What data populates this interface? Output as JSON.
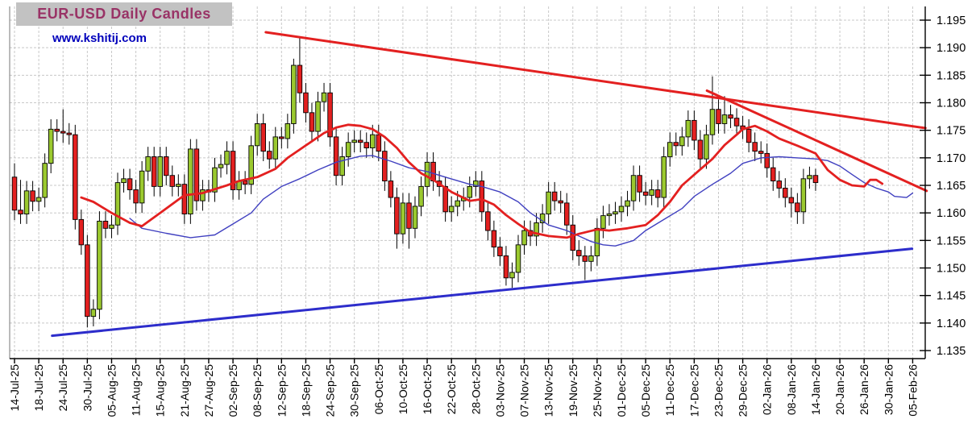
{
  "header": {
    "title": "EUR-USD Daily Candles",
    "website": "www.kshitij.com",
    "title_color": "#993366",
    "title_bg": "#c2c2c2",
    "website_color": "#0000bb"
  },
  "chart_data": {
    "type": "candlestick",
    "title": "EUR-USD Daily Candles",
    "xlabel": "",
    "ylabel": "",
    "grid": true,
    "ylim": [
      1.1335,
      1.1975
    ],
    "y_tick_labels": [
      "1.195",
      "1.190",
      "1.185",
      "1.180",
      "1.175",
      "1.170",
      "1.165",
      "1.160",
      "1.155",
      "1.150",
      "1.145",
      "1.140",
      "1.135"
    ],
    "x_labels": [
      "14-Jul-25",
      "18-Jul-25",
      "24-Jul-25",
      "30-Jul-25",
      "05-Aug-25",
      "11-Aug-25",
      "15-Aug-25",
      "21-Aug-25",
      "27-Aug-25",
      "02-Sep-25",
      "08-Sep-25",
      "12-Sep-25",
      "18-Sep-25",
      "24-Sep-25",
      "30-Sep-25",
      "06-Oct-25",
      "10-Oct-25",
      "16-Oct-25",
      "22-Oct-25",
      "28-Oct-25",
      "03-Nov-25",
      "07-Nov-25",
      "13-Nov-25",
      "19-Nov-25",
      "25-Nov-25",
      "01-Dec-25",
      "05-Dec-25",
      "11-Dec-25",
      "17-Dec-25",
      "23-Dec-25",
      "29-Dec-25",
      "02-Jan-26",
      "08-Jan-26",
      "14-Jan-26",
      "20-Jan-26",
      "26-Jan-26",
      "30-Jan-26",
      "05-Feb-26"
    ],
    "candles_per_label": 4,
    "colors": {
      "up_candle": "#9bc92f",
      "down_candle": "#e32020",
      "candle_border": "#000000",
      "fast_ma": "#e32020",
      "slow_ma": "#4040c0",
      "resistance_line": "#e32020",
      "support_line": "#2d2dcb",
      "grid": "#c8c8c8",
      "axis": "#000000"
    },
    "candles": [
      [
        1.1665,
        1.169,
        1.1587,
        1.1605
      ],
      [
        1.1605,
        1.166,
        1.158,
        1.1598
      ],
      [
        1.1598,
        1.1658,
        1.158,
        1.164
      ],
      [
        1.164,
        1.1658,
        1.1603,
        1.1621
      ],
      [
        1.1621,
        1.1646,
        1.1603,
        1.1628
      ],
      [
        1.1628,
        1.1708,
        1.161,
        1.169
      ],
      [
        1.169,
        1.177,
        1.1672,
        1.1752
      ],
      [
        1.1752,
        1.177,
        1.173,
        1.1748
      ],
      [
        1.1748,
        1.1788,
        1.1727,
        1.1745
      ],
      [
        1.1745,
        1.1763,
        1.1724,
        1.1742
      ],
      [
        1.1742,
        1.176,
        1.157,
        1.1588
      ],
      [
        1.1588,
        1.1606,
        1.1524,
        1.1542
      ],
      [
        1.1542,
        1.156,
        1.1392,
        1.1412
      ],
      [
        1.1412,
        1.1443,
        1.1394,
        1.1425
      ],
      [
        1.1425,
        1.1603,
        1.1407,
        1.1585
      ],
      [
        1.1585,
        1.1603,
        1.1554,
        1.1572
      ],
      [
        1.1572,
        1.1596,
        1.1554,
        1.1578
      ],
      [
        1.1578,
        1.1673,
        1.156,
        1.1655
      ],
      [
        1.1655,
        1.168,
        1.1637,
        1.1662
      ],
      [
        1.1662,
        1.168,
        1.1624,
        1.1642
      ],
      [
        1.1642,
        1.166,
        1.16,
        1.1618
      ],
      [
        1.1618,
        1.1694,
        1.16,
        1.1676
      ],
      [
        1.1676,
        1.172,
        1.1658,
        1.1702
      ],
      [
        1.1702,
        1.172,
        1.163,
        1.1648
      ],
      [
        1.1648,
        1.172,
        1.163,
        1.1702
      ],
      [
        1.1702,
        1.172,
        1.165,
        1.1668
      ],
      [
        1.1668,
        1.1686,
        1.163,
        1.1648
      ],
      [
        1.1648,
        1.167,
        1.163,
        1.1652
      ],
      [
        1.1652,
        1.167,
        1.158,
        1.1598
      ],
      [
        1.1598,
        1.1734,
        1.158,
        1.1716
      ],
      [
        1.1716,
        1.1734,
        1.1604,
        1.1622
      ],
      [
        1.1622,
        1.166,
        1.1604,
        1.1642
      ],
      [
        1.1642,
        1.166,
        1.162,
        1.1638
      ],
      [
        1.1638,
        1.17,
        1.162,
        1.1682
      ],
      [
        1.1682,
        1.1706,
        1.1664,
        1.1688
      ],
      [
        1.1688,
        1.173,
        1.167,
        1.1712
      ],
      [
        1.1712,
        1.173,
        1.1624,
        1.1642
      ],
      [
        1.1642,
        1.1676,
        1.1624,
        1.1658
      ],
      [
        1.1658,
        1.1676,
        1.1634,
        1.1652
      ],
      [
        1.1652,
        1.174,
        1.1634,
        1.1722
      ],
      [
        1.1722,
        1.178,
        1.1704,
        1.1762
      ],
      [
        1.1762,
        1.178,
        1.1694,
        1.1712
      ],
      [
        1.1712,
        1.173,
        1.168,
        1.1698
      ],
      [
        1.1698,
        1.1756,
        1.168,
        1.1738
      ],
      [
        1.1738,
        1.1756,
        1.1717,
        1.1735
      ],
      [
        1.1735,
        1.178,
        1.1717,
        1.1762
      ],
      [
        1.1762,
        1.188,
        1.1744,
        1.1868
      ],
      [
        1.1868,
        1.1919,
        1.18,
        1.1818
      ],
      [
        1.1818,
        1.1836,
        1.1764,
        1.1782
      ],
      [
        1.1782,
        1.18,
        1.173,
        1.1748
      ],
      [
        1.1748,
        1.182,
        1.173,
        1.1802
      ],
      [
        1.1802,
        1.1836,
        1.1784,
        1.1818
      ],
      [
        1.1818,
        1.1836,
        1.172,
        1.1738
      ],
      [
        1.1738,
        1.1756,
        1.165,
        1.1668
      ],
      [
        1.1668,
        1.172,
        1.165,
        1.1702
      ],
      [
        1.1702,
        1.1746,
        1.1684,
        1.1728
      ],
      [
        1.1728,
        1.175,
        1.171,
        1.1732
      ],
      [
        1.1732,
        1.175,
        1.171,
        1.1728
      ],
      [
        1.1728,
        1.1746,
        1.17,
        1.1718
      ],
      [
        1.1718,
        1.176,
        1.17,
        1.1742
      ],
      [
        1.1742,
        1.176,
        1.1694,
        1.1712
      ],
      [
        1.1712,
        1.173,
        1.164,
        1.1658
      ],
      [
        1.1658,
        1.1676,
        1.161,
        1.1628
      ],
      [
        1.1628,
        1.1646,
        1.1535,
        1.1562
      ],
      [
        1.1562,
        1.1636,
        1.1544,
        1.1618
      ],
      [
        1.1618,
        1.1636,
        1.1535,
        1.1572
      ],
      [
        1.1572,
        1.163,
        1.1554,
        1.1612
      ],
      [
        1.1612,
        1.1666,
        1.1594,
        1.1648
      ],
      [
        1.1648,
        1.171,
        1.163,
        1.1692
      ],
      [
        1.1692,
        1.171,
        1.164,
        1.1658
      ],
      [
        1.1658,
        1.1676,
        1.163,
        1.1648
      ],
      [
        1.1648,
        1.1666,
        1.1584,
        1.1602
      ],
      [
        1.1602,
        1.163,
        1.1584,
        1.1612
      ],
      [
        1.1612,
        1.164,
        1.1594,
        1.1622
      ],
      [
        1.1622,
        1.1646,
        1.1604,
        1.1628
      ],
      [
        1.1628,
        1.1666,
        1.161,
        1.1648
      ],
      [
        1.1648,
        1.1676,
        1.163,
        1.1658
      ],
      [
        1.1658,
        1.1676,
        1.1584,
        1.1602
      ],
      [
        1.1602,
        1.162,
        1.155,
        1.1568
      ],
      [
        1.1568,
        1.1586,
        1.152,
        1.1538
      ],
      [
        1.1538,
        1.1556,
        1.1504,
        1.1522
      ],
      [
        1.1522,
        1.154,
        1.1468,
        1.1482
      ],
      [
        1.1482,
        1.151,
        1.1464,
        1.1492
      ],
      [
        1.1492,
        1.156,
        1.1474,
        1.1542
      ],
      [
        1.1542,
        1.1586,
        1.1524,
        1.1568
      ],
      [
        1.1568,
        1.1586,
        1.154,
        1.1558
      ],
      [
        1.1558,
        1.16,
        1.154,
        1.1582
      ],
      [
        1.1582,
        1.1616,
        1.1564,
        1.1598
      ],
      [
        1.1598,
        1.1656,
        1.158,
        1.1638
      ],
      [
        1.1638,
        1.1656,
        1.1604,
        1.1622
      ],
      [
        1.1622,
        1.164,
        1.16,
        1.1618
      ],
      [
        1.1618,
        1.1636,
        1.156,
        1.1578
      ],
      [
        1.1578,
        1.1596,
        1.1514,
        1.1532
      ],
      [
        1.1532,
        1.155,
        1.1504,
        1.1522
      ],
      [
        1.1522,
        1.154,
        1.1478,
        1.1512
      ],
      [
        1.1512,
        1.154,
        1.1494,
        1.1522
      ],
      [
        1.1522,
        1.159,
        1.1504,
        1.1572
      ],
      [
        1.1572,
        1.1613,
        1.1554,
        1.1595
      ],
      [
        1.1595,
        1.1616,
        1.1577,
        1.1598
      ],
      [
        1.1598,
        1.162,
        1.158,
        1.1602
      ],
      [
        1.1602,
        1.163,
        1.1584,
        1.1612
      ],
      [
        1.1612,
        1.164,
        1.1594,
        1.1622
      ],
      [
        1.1622,
        1.1686,
        1.1604,
        1.1668
      ],
      [
        1.1668,
        1.1686,
        1.162,
        1.1638
      ],
      [
        1.1638,
        1.1656,
        1.1614,
        1.1632
      ],
      [
        1.1632,
        1.166,
        1.1614,
        1.1642
      ],
      [
        1.1642,
        1.166,
        1.161,
        1.1628
      ],
      [
        1.1628,
        1.172,
        1.161,
        1.1702
      ],
      [
        1.1702,
        1.1746,
        1.1684,
        1.1728
      ],
      [
        1.1728,
        1.1746,
        1.1704,
        1.1722
      ],
      [
        1.1722,
        1.1756,
        1.1704,
        1.1738
      ],
      [
        1.1738,
        1.1786,
        1.172,
        1.1768
      ],
      [
        1.1768,
        1.1786,
        1.1714,
        1.1732
      ],
      [
        1.1732,
        1.175,
        1.168,
        1.1698
      ],
      [
        1.1698,
        1.176,
        1.168,
        1.1742
      ],
      [
        1.1742,
        1.1848,
        1.1724,
        1.1788
      ],
      [
        1.1788,
        1.1806,
        1.1744,
        1.1762
      ],
      [
        1.1762,
        1.1812,
        1.1744,
        1.1778
      ],
      [
        1.1778,
        1.1796,
        1.1754,
        1.1772
      ],
      [
        1.1772,
        1.179,
        1.174,
        1.1758
      ],
      [
        1.1758,
        1.1776,
        1.1734,
        1.1752
      ],
      [
        1.1752,
        1.177,
        1.171,
        1.1728
      ],
      [
        1.1728,
        1.1746,
        1.1694,
        1.1712
      ],
      [
        1.1712,
        1.173,
        1.169,
        1.1708
      ],
      [
        1.1708,
        1.1726,
        1.1664,
        1.1682
      ],
      [
        1.1682,
        1.17,
        1.164,
        1.1658
      ],
      [
        1.1658,
        1.1676,
        1.1627,
        1.1645
      ],
      [
        1.1645,
        1.1663,
        1.161,
        1.1628
      ],
      [
        1.1628,
        1.1646,
        1.1592,
        1.1618
      ],
      [
        1.1618,
        1.1636,
        1.158,
        1.1602
      ],
      [
        1.1602,
        1.168,
        1.158,
        1.1662
      ],
      [
        1.1662,
        1.1684,
        1.1644,
        1.1668
      ],
      [
        1.1668,
        1.168,
        1.164,
        1.1655
      ]
    ],
    "overlays": {
      "fast_ma_red": {
        "width": 2.8,
        "points": [
          [
            11,
            1.1628
          ],
          [
            13,
            1.162
          ],
          [
            16,
            1.16
          ],
          [
            19,
            1.1582
          ],
          [
            21,
            1.1576
          ],
          [
            24,
            1.16
          ],
          [
            28,
            1.1632
          ],
          [
            31,
            1.1636
          ],
          [
            35,
            1.165
          ],
          [
            37,
            1.1658
          ],
          [
            40,
            1.1665
          ],
          [
            43,
            1.168
          ],
          [
            45,
            1.17
          ],
          [
            47,
            1.1715
          ],
          [
            49,
            1.173
          ],
          [
            51,
            1.1745
          ],
          [
            53,
            1.1755
          ],
          [
            55,
            1.176
          ],
          [
            57,
            1.1758
          ],
          [
            59,
            1.1752
          ],
          [
            61,
            1.1738
          ],
          [
            63,
            1.1718
          ],
          [
            65,
            1.1692
          ],
          [
            67,
            1.1672
          ],
          [
            69,
            1.166
          ],
          [
            72,
            1.1638
          ],
          [
            75,
            1.1622
          ],
          [
            77,
            1.1625
          ],
          [
            79,
            1.1615
          ],
          [
            81,
            1.1596
          ],
          [
            83,
            1.158
          ],
          [
            85,
            1.1565
          ],
          [
            88,
            1.1558
          ],
          [
            91,
            1.1555
          ],
          [
            93,
            1.1562
          ],
          [
            96,
            1.157
          ],
          [
            98,
            1.1568
          ],
          [
            101,
            1.1572
          ],
          [
            104,
            1.1578
          ],
          [
            106,
            1.1596
          ],
          [
            108,
            1.162
          ],
          [
            110,
            1.165
          ],
          [
            113,
            1.1679
          ],
          [
            115,
            1.1698
          ],
          [
            117,
            1.1723
          ],
          [
            119,
            1.1742
          ],
          [
            120,
            1.1752
          ],
          [
            122,
            1.1758
          ],
          [
            124,
            1.1748
          ],
          [
            126,
            1.1735
          ],
          [
            129,
            1.1722
          ],
          [
            132,
            1.1708
          ],
          [
            134,
            1.1678
          ],
          [
            136,
            1.166
          ],
          [
            138,
            1.165
          ],
          [
            140,
            1.1648
          ],
          [
            141,
            1.166
          ],
          [
            142,
            1.166
          ],
          [
            143,
            1.1653
          ]
        ]
      },
      "slow_ma_blue": {
        "width": 1.4,
        "points": [
          [
            19,
            1.159
          ],
          [
            21,
            1.1572
          ],
          [
            25,
            1.1563
          ],
          [
            29,
            1.1555
          ],
          [
            33,
            1.156
          ],
          [
            36,
            1.158
          ],
          [
            39,
            1.16
          ],
          [
            41,
            1.1625
          ],
          [
            44,
            1.1648
          ],
          [
            47,
            1.1662
          ],
          [
            50,
            1.1678
          ],
          [
            53,
            1.1692
          ],
          [
            57,
            1.1703
          ],
          [
            59,
            1.1704
          ],
          [
            62,
            1.1694
          ],
          [
            65,
            1.1682
          ],
          [
            68,
            1.1675
          ],
          [
            71,
            1.1665
          ],
          [
            75,
            1.1652
          ],
          [
            77,
            1.1648
          ],
          [
            80,
            1.1638
          ],
          [
            83,
            1.162
          ],
          [
            85,
            1.16
          ],
          [
            88,
            1.1578
          ],
          [
            91,
            1.1568
          ],
          [
            93,
            1.1558
          ],
          [
            95,
            1.1548
          ],
          [
            97,
            1.1542
          ],
          [
            99,
            1.154
          ],
          [
            102,
            1.155
          ],
          [
            104,
            1.1568
          ],
          [
            107,
            1.1588
          ],
          [
            110,
            1.1608
          ],
          [
            112,
            1.163
          ],
          [
            115,
            1.1652
          ],
          [
            118,
            1.1672
          ],
          [
            120,
            1.169
          ],
          [
            123,
            1.17
          ],
          [
            126,
            1.1702
          ],
          [
            129,
            1.17
          ],
          [
            132,
            1.1698
          ],
          [
            134,
            1.1695
          ],
          [
            136,
            1.1685
          ],
          [
            138,
            1.167
          ],
          [
            140,
            1.1655
          ],
          [
            142,
            1.1645
          ],
          [
            144,
            1.1638
          ],
          [
            145,
            1.163
          ],
          [
            147,
            1.1628
          ],
          [
            148,
            1.1636
          ]
        ]
      }
    },
    "trendlines": {
      "resistance_major": {
        "from": [
          41.4,
          1.1928
        ],
        "to": [
          150.1,
          1.1754
        ],
        "width": 3
      },
      "resistance_minor": {
        "from": [
          114.1,
          1.1822
        ],
        "to": [
          150.3,
          1.164
        ],
        "width": 3
      },
      "support": {
        "from": [
          6.2,
          1.1377
        ],
        "to": [
          147.9,
          1.1535
        ],
        "width": 3
      }
    }
  }
}
